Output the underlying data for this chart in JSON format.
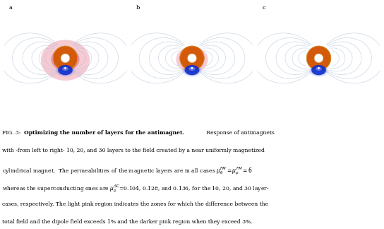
{
  "panel_labels": [
    "a",
    "b",
    "c"
  ],
  "background": "#ffffff",
  "panel_bg": "#ffffff",
  "border_color": "#888888",
  "light_pink": "#f0a0b0",
  "dark_pink": "#d06070",
  "field_line_color": "#b0c0d8",
  "field_line_alpha": 0.7,
  "fm_color_outer": "#d4a030",
  "fm_color_mid": "#e8c060",
  "fm_color_inner": "#f5e090",
  "sc_color": "#1030cc",
  "sc_glow_color": "#4060ee",
  "sc_bright": "#8090ff",
  "layers": [
    10,
    20,
    30
  ],
  "disturbance_scales": [
    1.0,
    0.65,
    0.42
  ],
  "caption_line1_label": "FIG. 3: ",
  "caption_line1_bold": "Optimizing the number of layers for the antimagnet.",
  "caption_line1_rest": " Response of antimagnets",
  "caption_lines": [
    "with -from left to right- 10, 20, and 30 layers to the field created by a near uniformly magnetized",
    "cylindrical magnet.  The permeabilities of the magnetic layers are in all cases $\\mu_\\theta^{FM} = \\mu_\\rho^{FM} = 6$",
    "whereas the superconducting ones are $\\mu_\\rho^{SC}$=0.104, 0.128, and 0.136, for the 10, 20, and 30 layer-",
    "cases, respectively. The light pink region indicates the zones for which the difference between the",
    "total field and the dipole field exceeds 1% and the darker pink region when they exceed 3%."
  ]
}
